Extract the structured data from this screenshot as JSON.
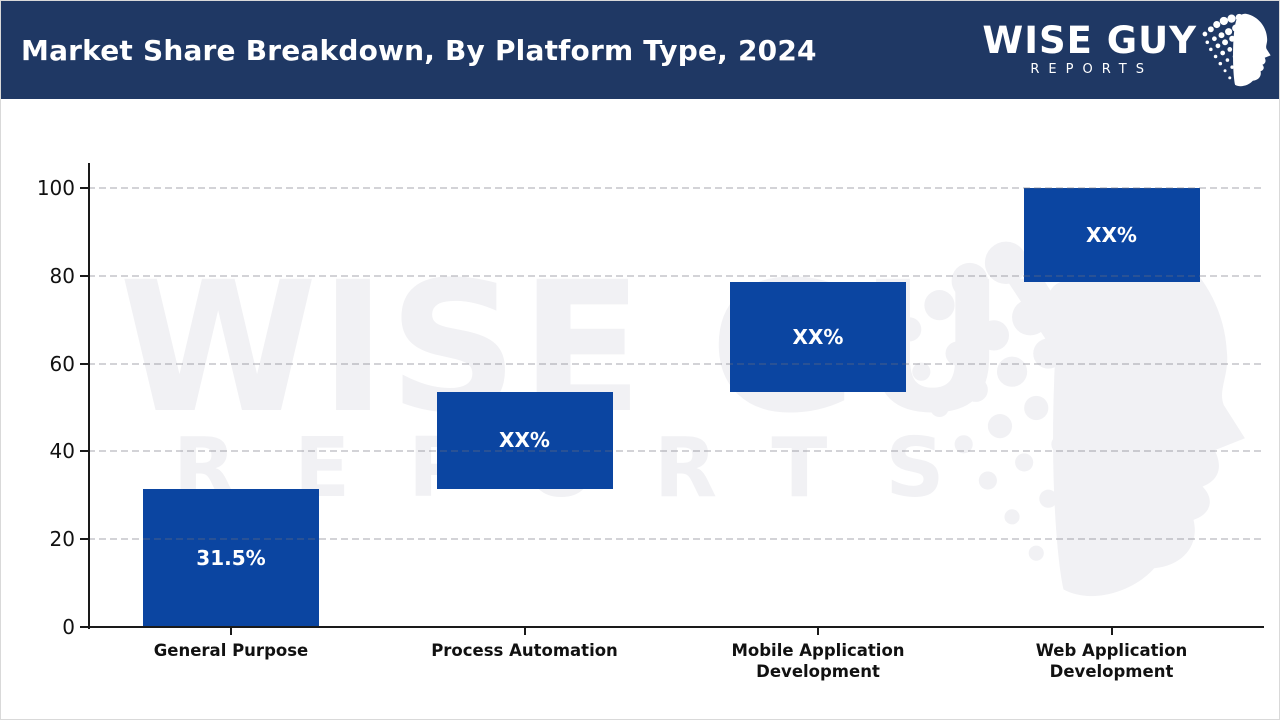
{
  "header": {
    "title": "Market Share Breakdown, By Platform Type, 2024",
    "bg_color": "#1F3864",
    "logo": {
      "brand_line1": "WISE GUY",
      "brand_line2": "REPORTS"
    }
  },
  "watermark": {
    "line1": "WISE GUY",
    "line2": "REPORTS"
  },
  "chart_data": {
    "type": "bar",
    "subtype": "waterfall",
    "title": "Market Share Breakdown, By Platform Type, 2024",
    "categories": [
      "General Purpose",
      "Process Automation",
      "Mobile Application Development",
      "Web Application Development"
    ],
    "segments": [
      {
        "category": "General Purpose",
        "start": 0,
        "end": 31.5,
        "label": "31.5%"
      },
      {
        "category": "Process Automation",
        "start": 31.5,
        "end": 53.5,
        "label": "XX%"
      },
      {
        "category": "Mobile Application Development",
        "start": 53.5,
        "end": 78.7,
        "label": "XX%"
      },
      {
        "category": "Web Application Development",
        "start": 78.7,
        "end": 100,
        "label": "XX%"
      }
    ],
    "xlabel": "",
    "ylabel": "",
    "ylim": [
      0,
      100
    ],
    "yticks": [
      0,
      20,
      40,
      60,
      80,
      100
    ],
    "grid": "dashed horizontal, drawn over bars",
    "legend": "none",
    "bar_color": "#0B45A1",
    "grid_color": "#D8D8D8",
    "axis_color": "#1A1A1A",
    "value_label_color": "#FFFFFF"
  }
}
